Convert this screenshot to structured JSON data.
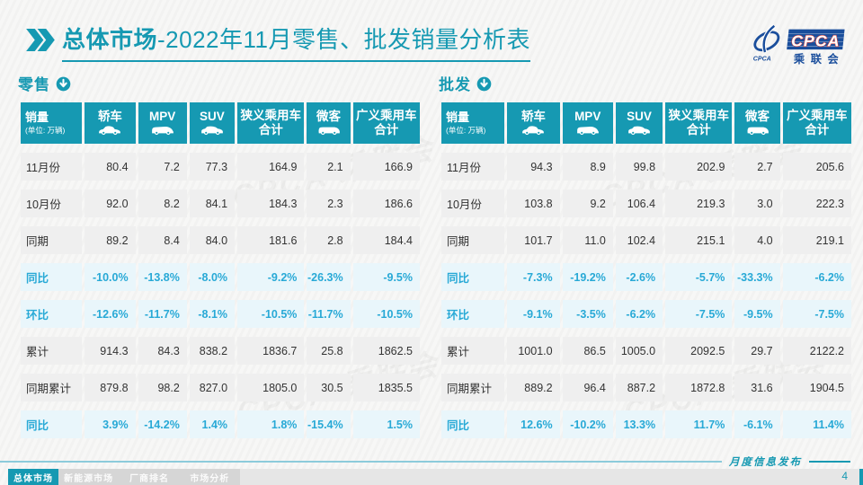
{
  "page": {
    "title_bold": "总体市场",
    "title_rest": "-2022年11月零售、批发销量分析表"
  },
  "logo": {
    "name": "CPCA 乘联会",
    "box_text": "CPCA",
    "sub_text": "乘联会",
    "swoosh_text": "CPCA"
  },
  "tables": [
    {
      "section": "零售",
      "section_icon": "down-circle-icon",
      "unit_label": "销量",
      "unit_sub": "(单位: 万辆)",
      "columns": [
        {
          "label": "轿车",
          "icon": "sedan-icon"
        },
        {
          "label": "MPV",
          "icon": "mpv-icon"
        },
        {
          "label": "SUV",
          "icon": "suv-icon"
        },
        {
          "label": "狭义乘用车",
          "label2": "合计"
        },
        {
          "label": "微客",
          "icon": "microvan-icon"
        },
        {
          "label": "广义乘用车",
          "label2": "合计"
        }
      ],
      "rows": [
        {
          "label": "11月份",
          "type": "data",
          "values": [
            "80.4",
            "7.2",
            "77.3",
            "164.9",
            "2.1",
            "166.9"
          ]
        },
        {
          "label": "10月份",
          "type": "data",
          "values": [
            "92.0",
            "8.2",
            "84.1",
            "184.3",
            "2.3",
            "186.6"
          ]
        },
        {
          "label": "同期",
          "type": "data",
          "values": [
            "89.2",
            "8.4",
            "84.0",
            "181.6",
            "2.8",
            "184.4"
          ]
        },
        {
          "label": "同比",
          "type": "pct",
          "values": [
            "-10.0%",
            "-13.8%",
            "-8.0%",
            "-9.2%",
            "-26.3%",
            "-9.5%"
          ]
        },
        {
          "label": "环比",
          "type": "pct",
          "values": [
            "-12.6%",
            "-11.7%",
            "-8.1%",
            "-10.5%",
            "-11.7%",
            "-10.5%"
          ]
        },
        {
          "label": "累计",
          "type": "data",
          "values": [
            "914.3",
            "84.3",
            "838.2",
            "1836.7",
            "25.8",
            "1862.5"
          ]
        },
        {
          "label": "同期累计",
          "type": "data",
          "values": [
            "879.8",
            "98.2",
            "827.0",
            "1805.0",
            "30.5",
            "1835.5"
          ]
        },
        {
          "label": "同比",
          "type": "pct",
          "values": [
            "3.9%",
            "-14.2%",
            "1.4%",
            "1.8%",
            "-15.4%",
            "1.5%"
          ]
        }
      ]
    },
    {
      "section": "批发",
      "section_icon": "down-circle-icon",
      "unit_label": "销量",
      "unit_sub": "(单位: 万辆)",
      "columns": [
        {
          "label": "轿车",
          "icon": "sedan-icon"
        },
        {
          "label": "MPV",
          "icon": "mpv-icon"
        },
        {
          "label": "SUV",
          "icon": "suv-icon"
        },
        {
          "label": "狭义乘用车",
          "label2": "合计"
        },
        {
          "label": "微客",
          "icon": "microvan-icon"
        },
        {
          "label": "广义乘用车",
          "label2": "合计"
        }
      ],
      "rows": [
        {
          "label": "11月份",
          "type": "data",
          "values": [
            "94.3",
            "8.9",
            "99.8",
            "202.9",
            "2.7",
            "205.6"
          ]
        },
        {
          "label": "10月份",
          "type": "data",
          "values": [
            "103.8",
            "9.2",
            "106.4",
            "219.3",
            "3.0",
            "222.3"
          ]
        },
        {
          "label": "同期",
          "type": "data",
          "values": [
            "101.7",
            "11.0",
            "102.4",
            "215.1",
            "4.0",
            "219.1"
          ]
        },
        {
          "label": "同比",
          "type": "pct",
          "values": [
            "-7.3%",
            "-19.2%",
            "-2.6%",
            "-5.7%",
            "-33.3%",
            "-6.2%"
          ]
        },
        {
          "label": "环比",
          "type": "pct",
          "values": [
            "-9.1%",
            "-3.5%",
            "-6.2%",
            "-7.5%",
            "-9.5%",
            "-7.5%"
          ]
        },
        {
          "label": "累计",
          "type": "data",
          "values": [
            "1001.0",
            "86.5",
            "1005.0",
            "2092.5",
            "29.7",
            "2122.2"
          ]
        },
        {
          "label": "同期累计",
          "type": "data",
          "values": [
            "889.2",
            "96.4",
            "887.2",
            "1872.8",
            "31.6",
            "1904.5"
          ]
        },
        {
          "label": "同比",
          "type": "pct",
          "values": [
            "12.6%",
            "-10.2%",
            "13.3%",
            "11.7%",
            "-6.1%",
            "11.4%"
          ]
        }
      ]
    }
  ],
  "footer": {
    "release_label": "月度信息发布",
    "page_number": "4",
    "tabs": [
      {
        "label": "总体市场",
        "active": true
      },
      {
        "label": "新能源市场",
        "active": false
      },
      {
        "label": "厂商排名",
        "active": false
      },
      {
        "label": "市场分析",
        "active": false
      }
    ]
  },
  "watermark_text": "CPCA 乘联会",
  "colors": {
    "teal": "#1699B2",
    "cyan_text": "#28A9D6",
    "row_gray": "#EFEFEF",
    "row_cyan": "#E9F6FB",
    "logo_navy": "#1A4E9C",
    "logo_red": "#D8403A"
  }
}
